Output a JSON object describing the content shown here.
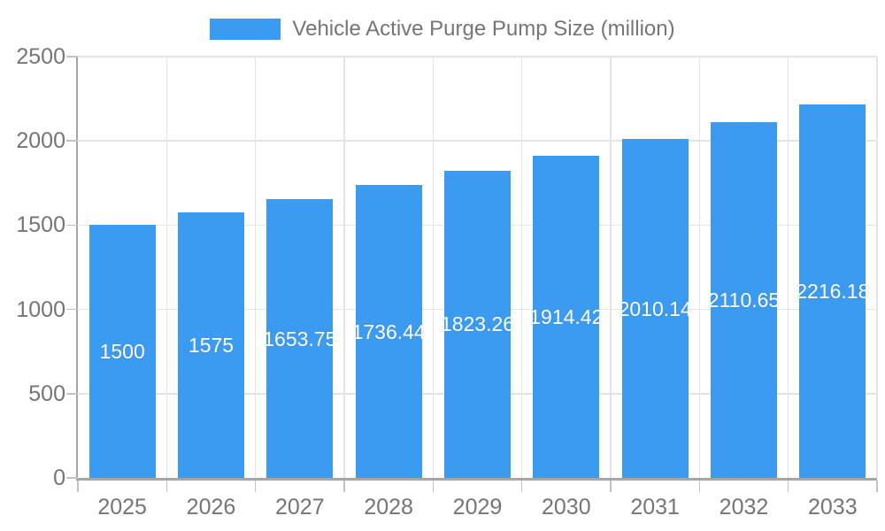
{
  "chart_data": {
    "type": "bar",
    "legend_label": "Vehicle Active Purge Pump Size (million)",
    "categories": [
      "2025",
      "2026",
      "2027",
      "2028",
      "2029",
      "2030",
      "2031",
      "2032",
      "2033"
    ],
    "values": [
      1500,
      1575,
      1653.75,
      1736.44,
      1823.26,
      1914.42,
      2010.14,
      2110.65,
      2216.18
    ],
    "value_labels": [
      "1500",
      "1575",
      "1653.75",
      "1736.44",
      "1823.26",
      "1914.42",
      "2010.14",
      "2110.65",
      "2216.18"
    ],
    "ylim": [
      0,
      2500
    ],
    "yticks": [
      0,
      500,
      1000,
      1500,
      2000,
      2500
    ],
    "grid": true,
    "legend_position": "top-center",
    "bar_color": "#3B9BF1",
    "axis_text_color": "#757575",
    "value_label_color": "#ffffff",
    "grid_color": "#e4e4e4",
    "axis_line_color": "#a6a6a6",
    "background_color": "#ffffff"
  }
}
